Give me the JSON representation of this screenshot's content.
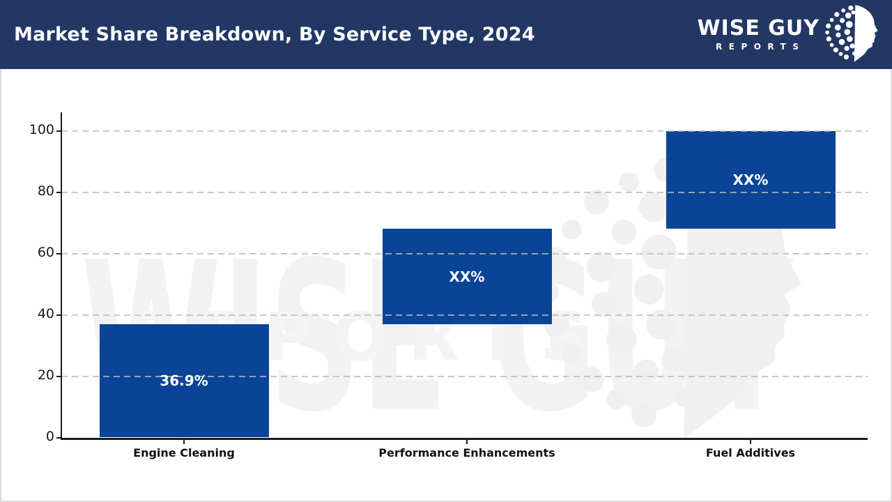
{
  "header": {
    "title": "Market Share Breakdown, By Service Type, 2024",
    "bg_color": "#223764",
    "logo": {
      "wordmark": "WISE GUY",
      "subtitle": "REPORTS"
    }
  },
  "watermark": {
    "word": "WISE GUY",
    "subword": "REPORTS"
  },
  "chart_data": {
    "type": "bar",
    "subtype": "floating-waterfall",
    "title": "Market Share Breakdown, By Service Type, 2024",
    "categories": [
      "Engine Cleaning",
      "Performance Enhancements",
      "Fuel Additives"
    ],
    "bars": [
      {
        "category": "Engine Cleaning",
        "start": 0,
        "end": 36.9,
        "label": "36.9%"
      },
      {
        "category": "Performance Enhancements",
        "start": 36.9,
        "end": 68,
        "label": "XX%"
      },
      {
        "category": "Fuel Additives",
        "start": 68,
        "end": 100,
        "label": "XX%"
      }
    ],
    "y_ticks": [
      0,
      20,
      40,
      60,
      80,
      100
    ],
    "ylim": [
      0,
      106
    ],
    "xlabel": "",
    "ylabel": "",
    "bar_color": "#0a4496",
    "bar_label_color": "#ffffff",
    "grid": "horizontal-dashed-over-bars",
    "gridline_color": "#c9c9c9",
    "legend": "none"
  }
}
